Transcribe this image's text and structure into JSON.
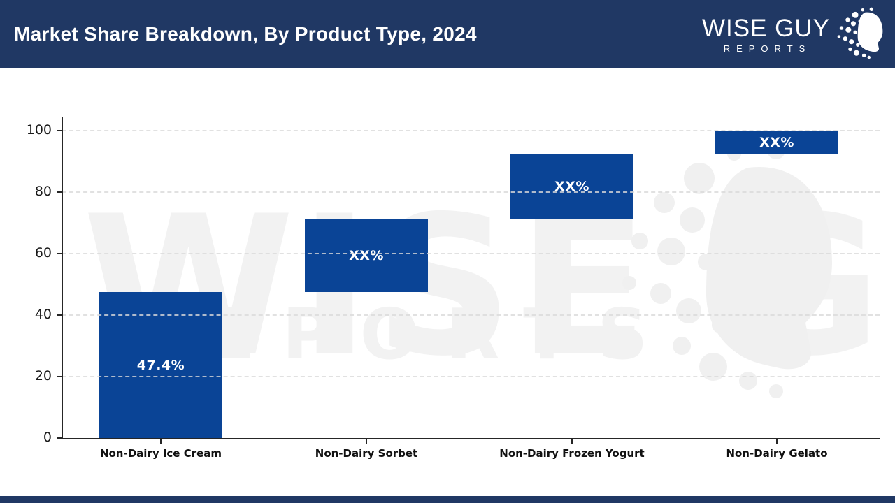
{
  "header": {
    "title": "Market Share Breakdown, By Product Type, 2024",
    "brand": {
      "name": "WISE GUY",
      "subtitle": "REPORTS"
    }
  },
  "watermark": {
    "line1": "WISE GUY",
    "line2": "REPORTS"
  },
  "colors": {
    "header_bg": "#203864",
    "bar": "#0a4496",
    "bar_label": "#ffffff",
    "axis": "#262626",
    "gridline": "#d9d9d9",
    "watermark": "#f2f2f2"
  },
  "chart_data": {
    "type": "bar",
    "subtype": "waterfall",
    "title": "Market Share Breakdown, By Product Type, 2024",
    "categories": [
      "Non-Dairy Ice Cream",
      "Non-Dairy Sorbet",
      "Non-Dairy Frozen Yogurt",
      "Non-Dairy Gelato"
    ],
    "segments": [
      {
        "label": "47.4%",
        "start": 0,
        "end": 47.4
      },
      {
        "label": "XX%",
        "start": 47.4,
        "end": 71.3
      },
      {
        "label": "XX%",
        "start": 71.3,
        "end": 92.3
      },
      {
        "label": "XX%",
        "start": 92.3,
        "end": 100
      }
    ],
    "yticks": [
      0,
      20,
      40,
      60,
      80,
      100
    ],
    "ylim": [
      0,
      104
    ],
    "grid": "dashed-horizontal",
    "legend": "none",
    "xlabel": "",
    "ylabel": ""
  }
}
